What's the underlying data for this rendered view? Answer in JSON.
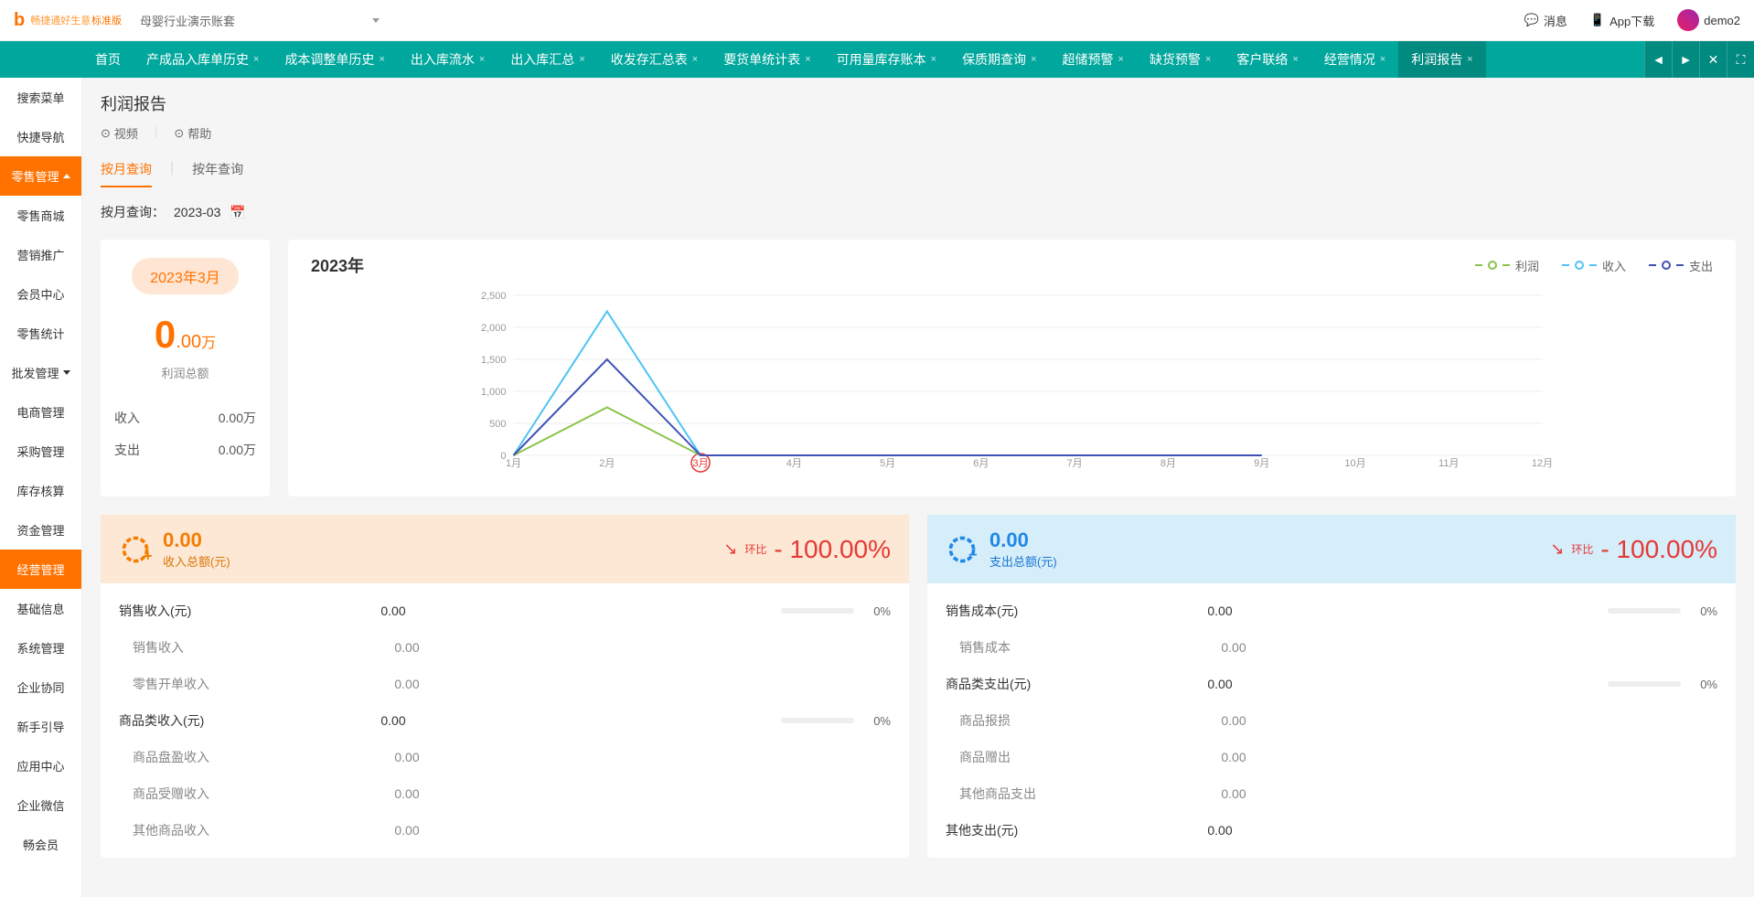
{
  "header": {
    "brand_name": "畅捷通好生意",
    "brand_sub": "标准版",
    "account": "母婴行业演示账套",
    "msg": "消息",
    "download": "App下载",
    "user": "demo2"
  },
  "tabs": {
    "home": "首页",
    "items": [
      "产成品入库单历史",
      "成本调整单历史",
      "出入库流水",
      "出入库汇总",
      "收发存汇总表",
      "要货单统计表",
      "可用量库存账本",
      "保质期查询",
      "超储预警",
      "缺货预警",
      "客户联络",
      "经营情况",
      "利润报告"
    ],
    "active_index": 12
  },
  "sidebar": {
    "items": [
      {
        "label": "搜索菜单",
        "type": "item"
      },
      {
        "label": "快捷导航",
        "type": "item"
      },
      {
        "label": "零售管理",
        "type": "section",
        "expanded": true
      },
      {
        "label": "零售商城",
        "type": "sub"
      },
      {
        "label": "营销推广",
        "type": "sub"
      },
      {
        "label": "会员中心",
        "type": "sub"
      },
      {
        "label": "零售统计",
        "type": "sub"
      },
      {
        "label": "批发管理",
        "type": "section-collapsed"
      },
      {
        "label": "电商管理",
        "type": "item"
      },
      {
        "label": "采购管理",
        "type": "item"
      },
      {
        "label": "库存核算",
        "type": "item"
      },
      {
        "label": "资金管理",
        "type": "item"
      },
      {
        "label": "经营管理",
        "type": "highlight"
      },
      {
        "label": "基础信息",
        "type": "item"
      },
      {
        "label": "系统管理",
        "type": "item"
      },
      {
        "label": "企业协同",
        "type": "item"
      },
      {
        "label": "新手引导",
        "type": "item"
      },
      {
        "label": "应用中心",
        "type": "item"
      },
      {
        "label": "企业微信",
        "type": "item"
      },
      {
        "label": "畅会员",
        "type": "item"
      }
    ]
  },
  "page": {
    "title": "利润报告",
    "video": "视频",
    "help": "帮助",
    "query_month": "按月查询",
    "query_year": "按年查询",
    "filter_label": "按月查询：",
    "filter_value": "2023-03"
  },
  "summary": {
    "period": "2023年3月",
    "big_int": "0",
    "big_dec": ".00",
    "big_unit": "万",
    "profit_label": "利润总额",
    "income_label": "收入",
    "income_val": "0.00万",
    "expense_label": "支出",
    "expense_val": "0.00万"
  },
  "chart": {
    "title": "2023年",
    "legend": [
      {
        "label": "利润",
        "color": "#8bc34a"
      },
      {
        "label": "收入",
        "color": "#4fc3f7"
      },
      {
        "label": "支出",
        "color": "#3f51b5"
      }
    ],
    "x_labels": [
      "1月",
      "2月",
      "3月",
      "4月",
      "5月",
      "6月",
      "7月",
      "8月",
      "9月",
      "10月",
      "11月",
      "12月"
    ],
    "y_ticks": [
      0,
      500,
      1000,
      1500,
      2000,
      2500
    ],
    "y_max": 2500,
    "highlight_x_index": 2,
    "series": [
      {
        "color": "#8bc34a",
        "data": [
          0,
          750,
          0,
          0,
          0,
          0,
          0,
          0,
          0,
          0,
          0,
          0
        ],
        "stop_at": 8
      },
      {
        "color": "#4fc3f7",
        "data": [
          0,
          2250,
          0,
          0,
          0,
          0,
          0,
          0,
          0,
          0,
          0,
          0
        ],
        "stop_at": 8
      },
      {
        "color": "#3f51b5",
        "data": [
          0,
          1500,
          0,
          0,
          0,
          0,
          0,
          0,
          0,
          0,
          0,
          0
        ],
        "stop_at": 8
      }
    ],
    "grid_color": "#eeeeee",
    "axis_color": "#cccccc"
  },
  "income_card": {
    "amount": "0.00",
    "label": "收入总额(元)",
    "huanbi": "环比",
    "pct": "- 100.00%",
    "rows": [
      {
        "name": "销售收入(元)",
        "val": "0.00",
        "pct": "0%",
        "main": true
      },
      {
        "name": "销售收入",
        "val": "0.00",
        "main": false
      },
      {
        "name": "零售开单收入",
        "val": "0.00",
        "main": false
      },
      {
        "name": "商品类收入(元)",
        "val": "0.00",
        "pct": "0%",
        "main": true
      },
      {
        "name": "商品盘盈收入",
        "val": "0.00",
        "main": false
      },
      {
        "name": "商品受赠收入",
        "val": "0.00",
        "main": false
      },
      {
        "name": "其他商品收入",
        "val": "0.00",
        "main": false
      }
    ]
  },
  "expense_card": {
    "amount": "0.00",
    "label": "支出总额(元)",
    "huanbi": "环比",
    "pct": "- 100.00%",
    "rows": [
      {
        "name": "销售成本(元)",
        "val": "0.00",
        "pct": "0%",
        "main": true
      },
      {
        "name": "销售成本",
        "val": "0.00",
        "main": false
      },
      {
        "name": "商品类支出(元)",
        "val": "0.00",
        "pct": "0%",
        "main": true
      },
      {
        "name": "商品报损",
        "val": "0.00",
        "main": false
      },
      {
        "name": "商品赠出",
        "val": "0.00",
        "main": false
      },
      {
        "name": "其他商品支出",
        "val": "0.00",
        "main": false
      },
      {
        "name": "其他支出(元)",
        "val": "0.00",
        "main": true
      }
    ]
  }
}
